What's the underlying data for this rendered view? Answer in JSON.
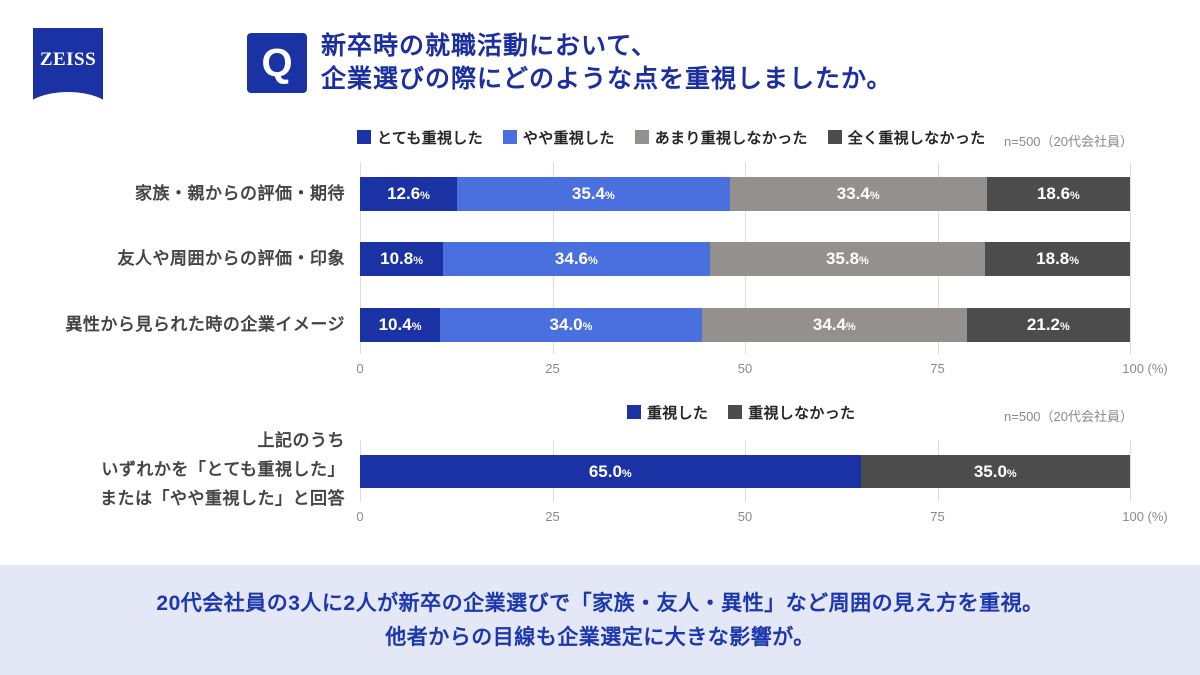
{
  "brand": {
    "logo_text": "ZEISS"
  },
  "header": {
    "q_badge": "Q",
    "title_line1": "新卒時の就職活動において、",
    "title_line2": "企業選びの際にどのような点を重視しましたか。"
  },
  "chart_data": [
    {
      "type": "bar",
      "stacked": true,
      "orientation": "horizontal",
      "title": "",
      "sample_note": "n=500（20代会社員）",
      "legend_position": "top",
      "legend": [
        "とても重視した",
        "やや重視した",
        "あまり重視しなかった",
        "全く重視しなかった"
      ],
      "legend_colors": [
        "#1A32A4",
        "#4A70DF",
        "#94908D",
        "#4C4C4C"
      ],
      "categories": [
        "家族・親からの評価・期待",
        "友人や周囲からの評価・印象",
        "異性から見られた時の企業イメージ"
      ],
      "series": [
        {
          "name": "とても重視した",
          "values": [
            12.6,
            10.8,
            10.4
          ]
        },
        {
          "name": "やや重視した",
          "values": [
            35.4,
            34.6,
            34.0
          ]
        },
        {
          "name": "あまり重視しなかった",
          "values": [
            33.4,
            35.8,
            34.4
          ]
        },
        {
          "name": "全く重視しなかった",
          "values": [
            18.6,
            18.8,
            21.2
          ]
        }
      ],
      "value_suffix": "%",
      "xlim": [
        0,
        100
      ],
      "xticks": [
        0,
        25,
        50,
        75,
        100
      ],
      "xtick_labels": [
        "0",
        "25",
        "50",
        "75",
        "100 (%)"
      ],
      "grid": true
    },
    {
      "type": "bar",
      "stacked": true,
      "orientation": "horizontal",
      "title": "",
      "sample_note": "n=500（20代会社員）",
      "legend_position": "top",
      "legend": [
        "重視した",
        "重視しなかった"
      ],
      "legend_colors": [
        "#1A32A4",
        "#4C4C4C"
      ],
      "categories": [
        "上記のうち いずれかを「とても重視した」 または「やや重視した」と回答"
      ],
      "category_lines": [
        "上記のうち",
        "いずれかを「とても重視した」",
        "または「やや重視した」と回答"
      ],
      "series": [
        {
          "name": "重視した",
          "values": [
            65.0
          ]
        },
        {
          "name": "重視しなかった",
          "values": [
            35.0
          ]
        }
      ],
      "value_suffix": "%",
      "xlim": [
        0,
        100
      ],
      "xticks": [
        0,
        25,
        50,
        75,
        100
      ],
      "xtick_labels": [
        "0",
        "25",
        "50",
        "75",
        "100 (%)"
      ],
      "grid": true
    }
  ],
  "footer": {
    "line1": "20代会社員の3人に2人が新卒の企業選びで「家族・友人・異性」など周囲の見え方を重視。",
    "line2": "他者からの目線も企業選定に大きな影響が。"
  }
}
